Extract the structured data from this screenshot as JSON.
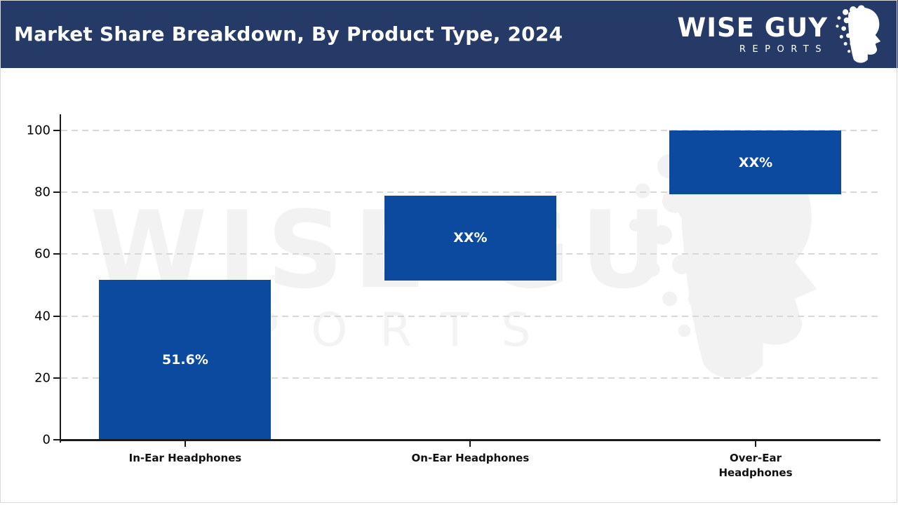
{
  "header": {
    "title": "Market Share Breakdown, By Product Type, 2024",
    "bg_color": "#253a66",
    "logo": {
      "line1": "WISE GUY",
      "line2": "REPORTS"
    }
  },
  "watermark": {
    "line1": "WISE GUY",
    "line2": "REPORTS"
  },
  "chart_data": {
    "type": "bar",
    "subtype": "floating-segment-waterfall",
    "title": "",
    "xlabel": "",
    "ylabel": "",
    "categories": [
      "In-Ear Headphones",
      "On-Ear Headphones",
      "Over-Ear Headphones"
    ],
    "segments": [
      {
        "category": "In-Ear Headphones",
        "start": 0,
        "end": 51.6,
        "label": "51.6%"
      },
      {
        "category": "On-Ear Headphones",
        "start": 51.5,
        "end": 79,
        "label": "XX%"
      },
      {
        "category": "Over-Ear Headphones",
        "start": 79.3,
        "end": 100,
        "label": "XX%"
      }
    ],
    "yticks": [
      0,
      20,
      40,
      60,
      80,
      100
    ],
    "ylim": [
      0,
      100
    ],
    "grid": "horizontal-dashed",
    "legend": "none",
    "bar_color": "#0b4a9e",
    "bar_label_color": "#ffffff",
    "grid_color": "#d8d8d8",
    "axis_color": "#1a1a1a"
  }
}
